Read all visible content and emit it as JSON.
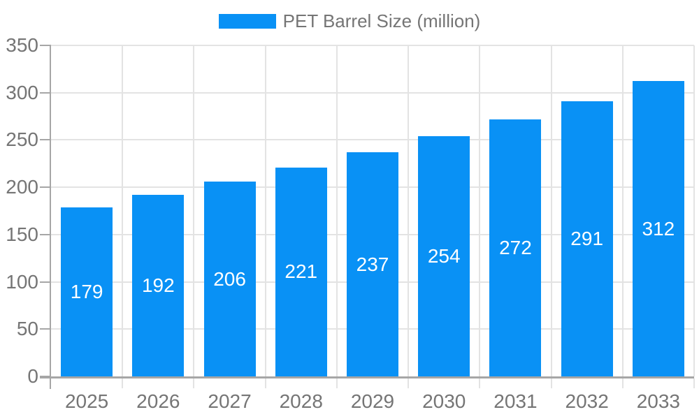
{
  "chart_data": {
    "type": "bar",
    "title": "PET Barrel Size (million)",
    "legend": {
      "label": "PET Barrel Size (million)",
      "position": "top"
    },
    "categories": [
      "2025",
      "2026",
      "2027",
      "2028",
      "2029",
      "2030",
      "2031",
      "2032",
      "2033"
    ],
    "values": [
      179,
      192,
      206,
      221,
      237,
      254,
      272,
      291,
      312
    ],
    "xlabel": "",
    "ylabel": "",
    "ylim": [
      0,
      350
    ],
    "yticks": [
      0,
      50,
      100,
      150,
      200,
      250,
      300,
      350
    ],
    "grid": true,
    "value_labels": "inside-center",
    "colors": {
      "bar": "#0991f5",
      "grid": "#e3e3e3",
      "axis": "#a6a6a6",
      "text": "#757575",
      "value_label": "#ffffff",
      "background": "#ffffff"
    }
  }
}
